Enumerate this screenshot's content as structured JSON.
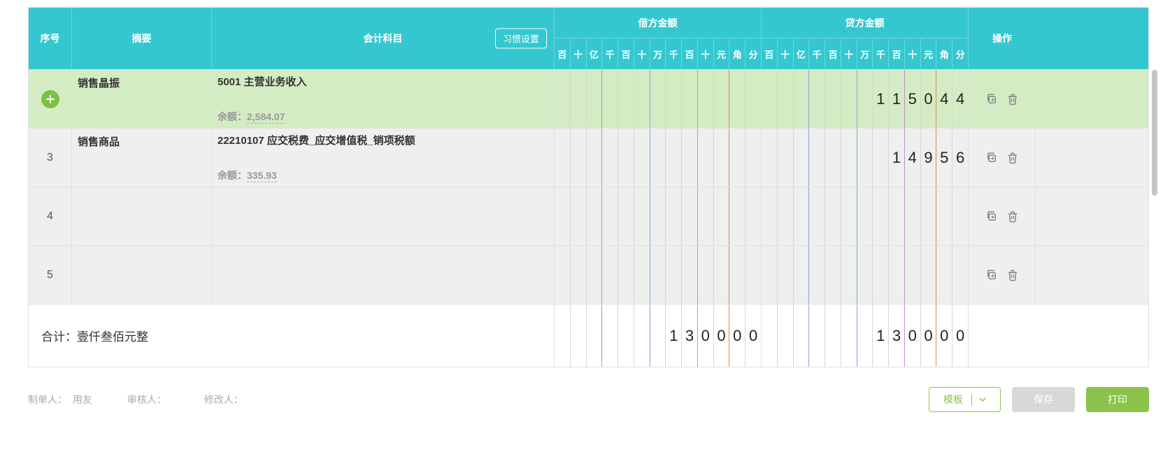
{
  "header": {
    "seq": "序号",
    "abstract": "摘要",
    "account": "会计科目",
    "habit_btn": "习惯设置",
    "debit": "借方金额",
    "credit": "贷方金额",
    "ops": "操作",
    "digit_labels": [
      "百",
      "十",
      "亿",
      "千",
      "百",
      "十",
      "万",
      "千",
      "百",
      "十",
      "元",
      "角",
      "分"
    ]
  },
  "rows": [
    {
      "seq_mode": "add",
      "abstract": "销售晶振",
      "account": "5001 主营业务收入",
      "balance_label": "余额：",
      "balance": "2,584.07",
      "debit": "",
      "credit": "115044",
      "highlight": true
    },
    {
      "seq_mode": "num",
      "seq": "3",
      "abstract": "销售商品",
      "account": "22210107 应交税费_应交增值税_销项税额",
      "balance_label": "余额：",
      "balance": "335.93",
      "debit": "",
      "credit": "14956",
      "highlight": false
    },
    {
      "seq_mode": "num",
      "seq": "4",
      "abstract": "",
      "account": "",
      "balance_label": "",
      "balance": "",
      "debit": "",
      "credit": "",
      "highlight": false
    },
    {
      "seq_mode": "num",
      "seq": "5",
      "abstract": "",
      "account": "",
      "balance_label": "",
      "balance": "",
      "debit": "",
      "credit": "",
      "highlight": false
    }
  ],
  "totals": {
    "label": "合计：壹仟叁佰元整",
    "debit": "130000",
    "credit": "130000"
  },
  "footer": {
    "preparer_label": "制单人：",
    "preparer_value": "用友",
    "reviewer_label": "审核人：",
    "reviewer_value": "",
    "modifier_label": "修改人：",
    "modifier_value": "",
    "template_btn": "模板",
    "save_btn": "保存",
    "print_btn": "打印"
  },
  "style": {
    "header_bg": "#35c7d0",
    "row_bg": "#eef0ed",
    "row_hl_bg": "#d4ecc3",
    "add_btn_bg": "#7bc143",
    "print_btn_bg": "#8bc34a",
    "save_btn_bg": "#d8d8d8",
    "sep_indices_blue": [
      2,
      5
    ],
    "sep_indices_purple": [
      8
    ],
    "sep_indices_orange": [
      10
    ]
  }
}
